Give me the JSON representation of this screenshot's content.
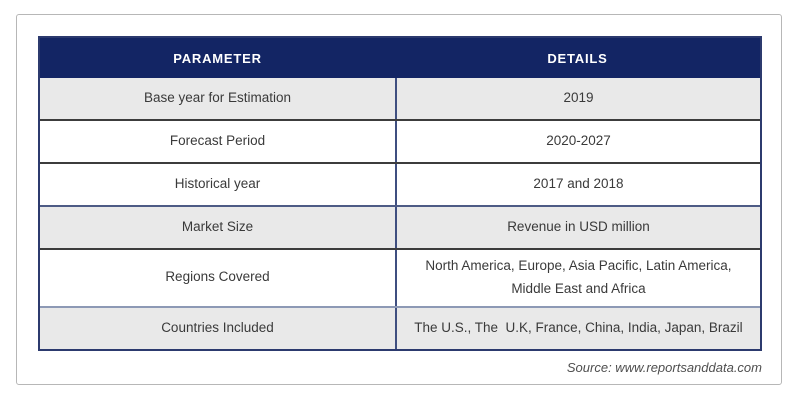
{
  "chart_data": {
    "type": "table",
    "columns": [
      "PARAMETER",
      "DETAILS"
    ],
    "rows": [
      [
        "Base year for Estimation",
        "2019"
      ],
      [
        "Forecast Period",
        "2020-2027"
      ],
      [
        "Historical year",
        "2017 and 2018"
      ],
      [
        "Market Size",
        "Revenue in USD million"
      ],
      [
        "Regions Covered",
        "North America, Europe, Asia Pacific, Latin America, Middle East and Africa"
      ],
      [
        "Countries Included",
        "The U.S., The  U.K, France, China, India, Japan, Brazil"
      ]
    ],
    "source": "Source: www.reportsanddata.com"
  },
  "colors": {
    "header_bg": "#132564",
    "header_text": "#ffffff",
    "row_shaded_bg": "#e9e9e9",
    "row_white_bg": "#ffffff",
    "cell_text": "#3a3a3a",
    "table_border": "#2c3a6e",
    "divider": "#3f4f80",
    "separator_dark": "#3c3c3c",
    "separator_blue": "#4d5b85",
    "separator_light": "#8d99b5",
    "frame_border": "#b7b7b7",
    "source_text": "#4f4f4f"
  }
}
